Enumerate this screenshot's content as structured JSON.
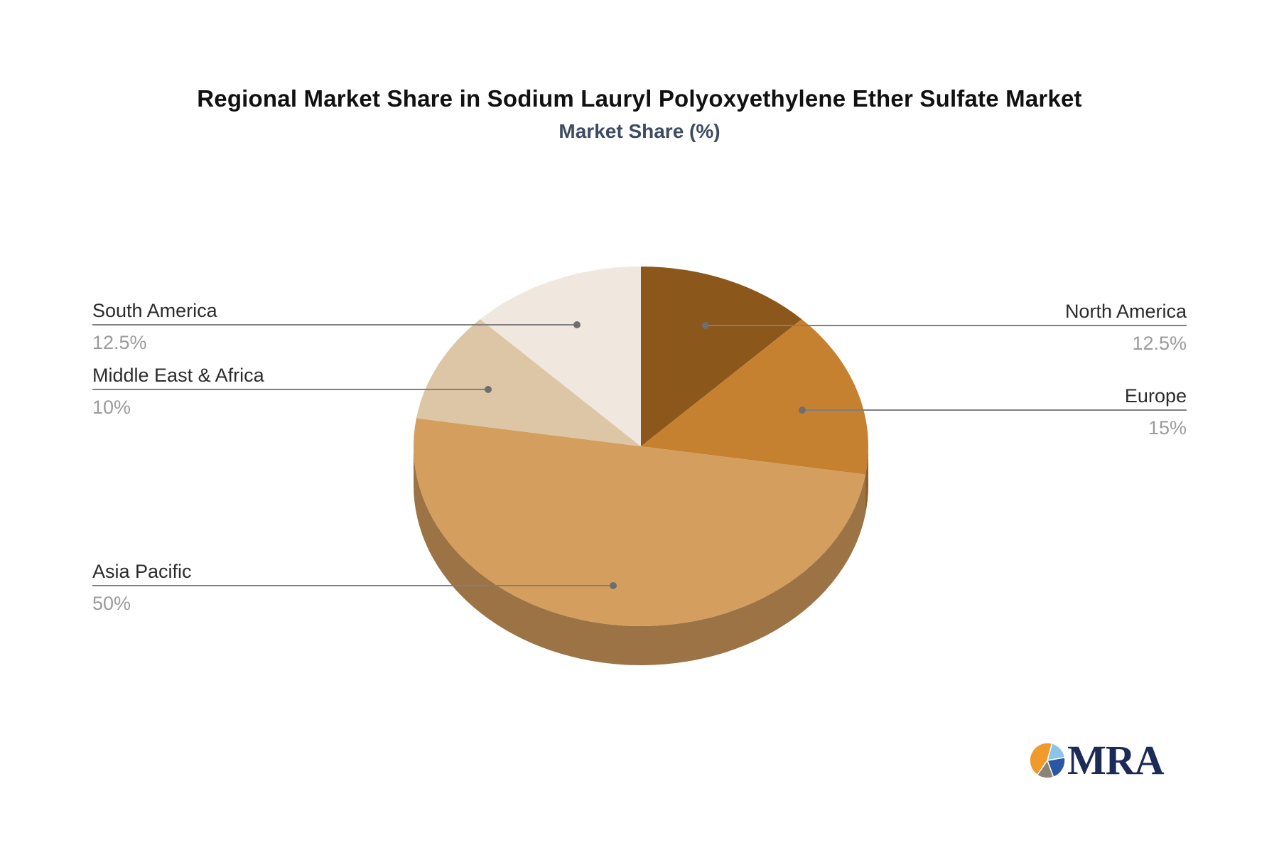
{
  "chart_data": {
    "type": "pie",
    "title": "Regional Market Share in Sodium Lauryl Polyoxyethylene Ether Sulfate Market",
    "subtitle": "Market Share (%)",
    "style": "3d-pie",
    "start_angle_deg": 0,
    "clockwise": true,
    "legend_position": "callout-labels",
    "series": [
      {
        "name": "North America",
        "value": 12.5,
        "pct_label": "12.5%",
        "color": "#8C571A"
      },
      {
        "name": "Europe",
        "value": 15,
        "pct_label": "15%",
        "color": "#C5812F"
      },
      {
        "name": "Asia Pacific",
        "value": 50,
        "pct_label": "50%",
        "color": "#D49E5F"
      },
      {
        "name": "Middle East & Africa",
        "value": 10,
        "pct_label": "10%",
        "color": "#DDC6A5"
      },
      {
        "name": "South America",
        "value": 12.5,
        "pct_label": "12.5%",
        "color": "#F0E8DF"
      }
    ],
    "label_text_color": "#2b2b2b",
    "pct_text_color": "#9b9b9b",
    "leader_line_color": "#7f7f7f"
  },
  "logo": {
    "text": "MRA",
    "colors": {
      "orange": "#F09A2D",
      "light_blue": "#8CC3E8",
      "dark_blue": "#2B56A4",
      "gray": "#8C8377",
      "text": "#1B2A57"
    }
  }
}
